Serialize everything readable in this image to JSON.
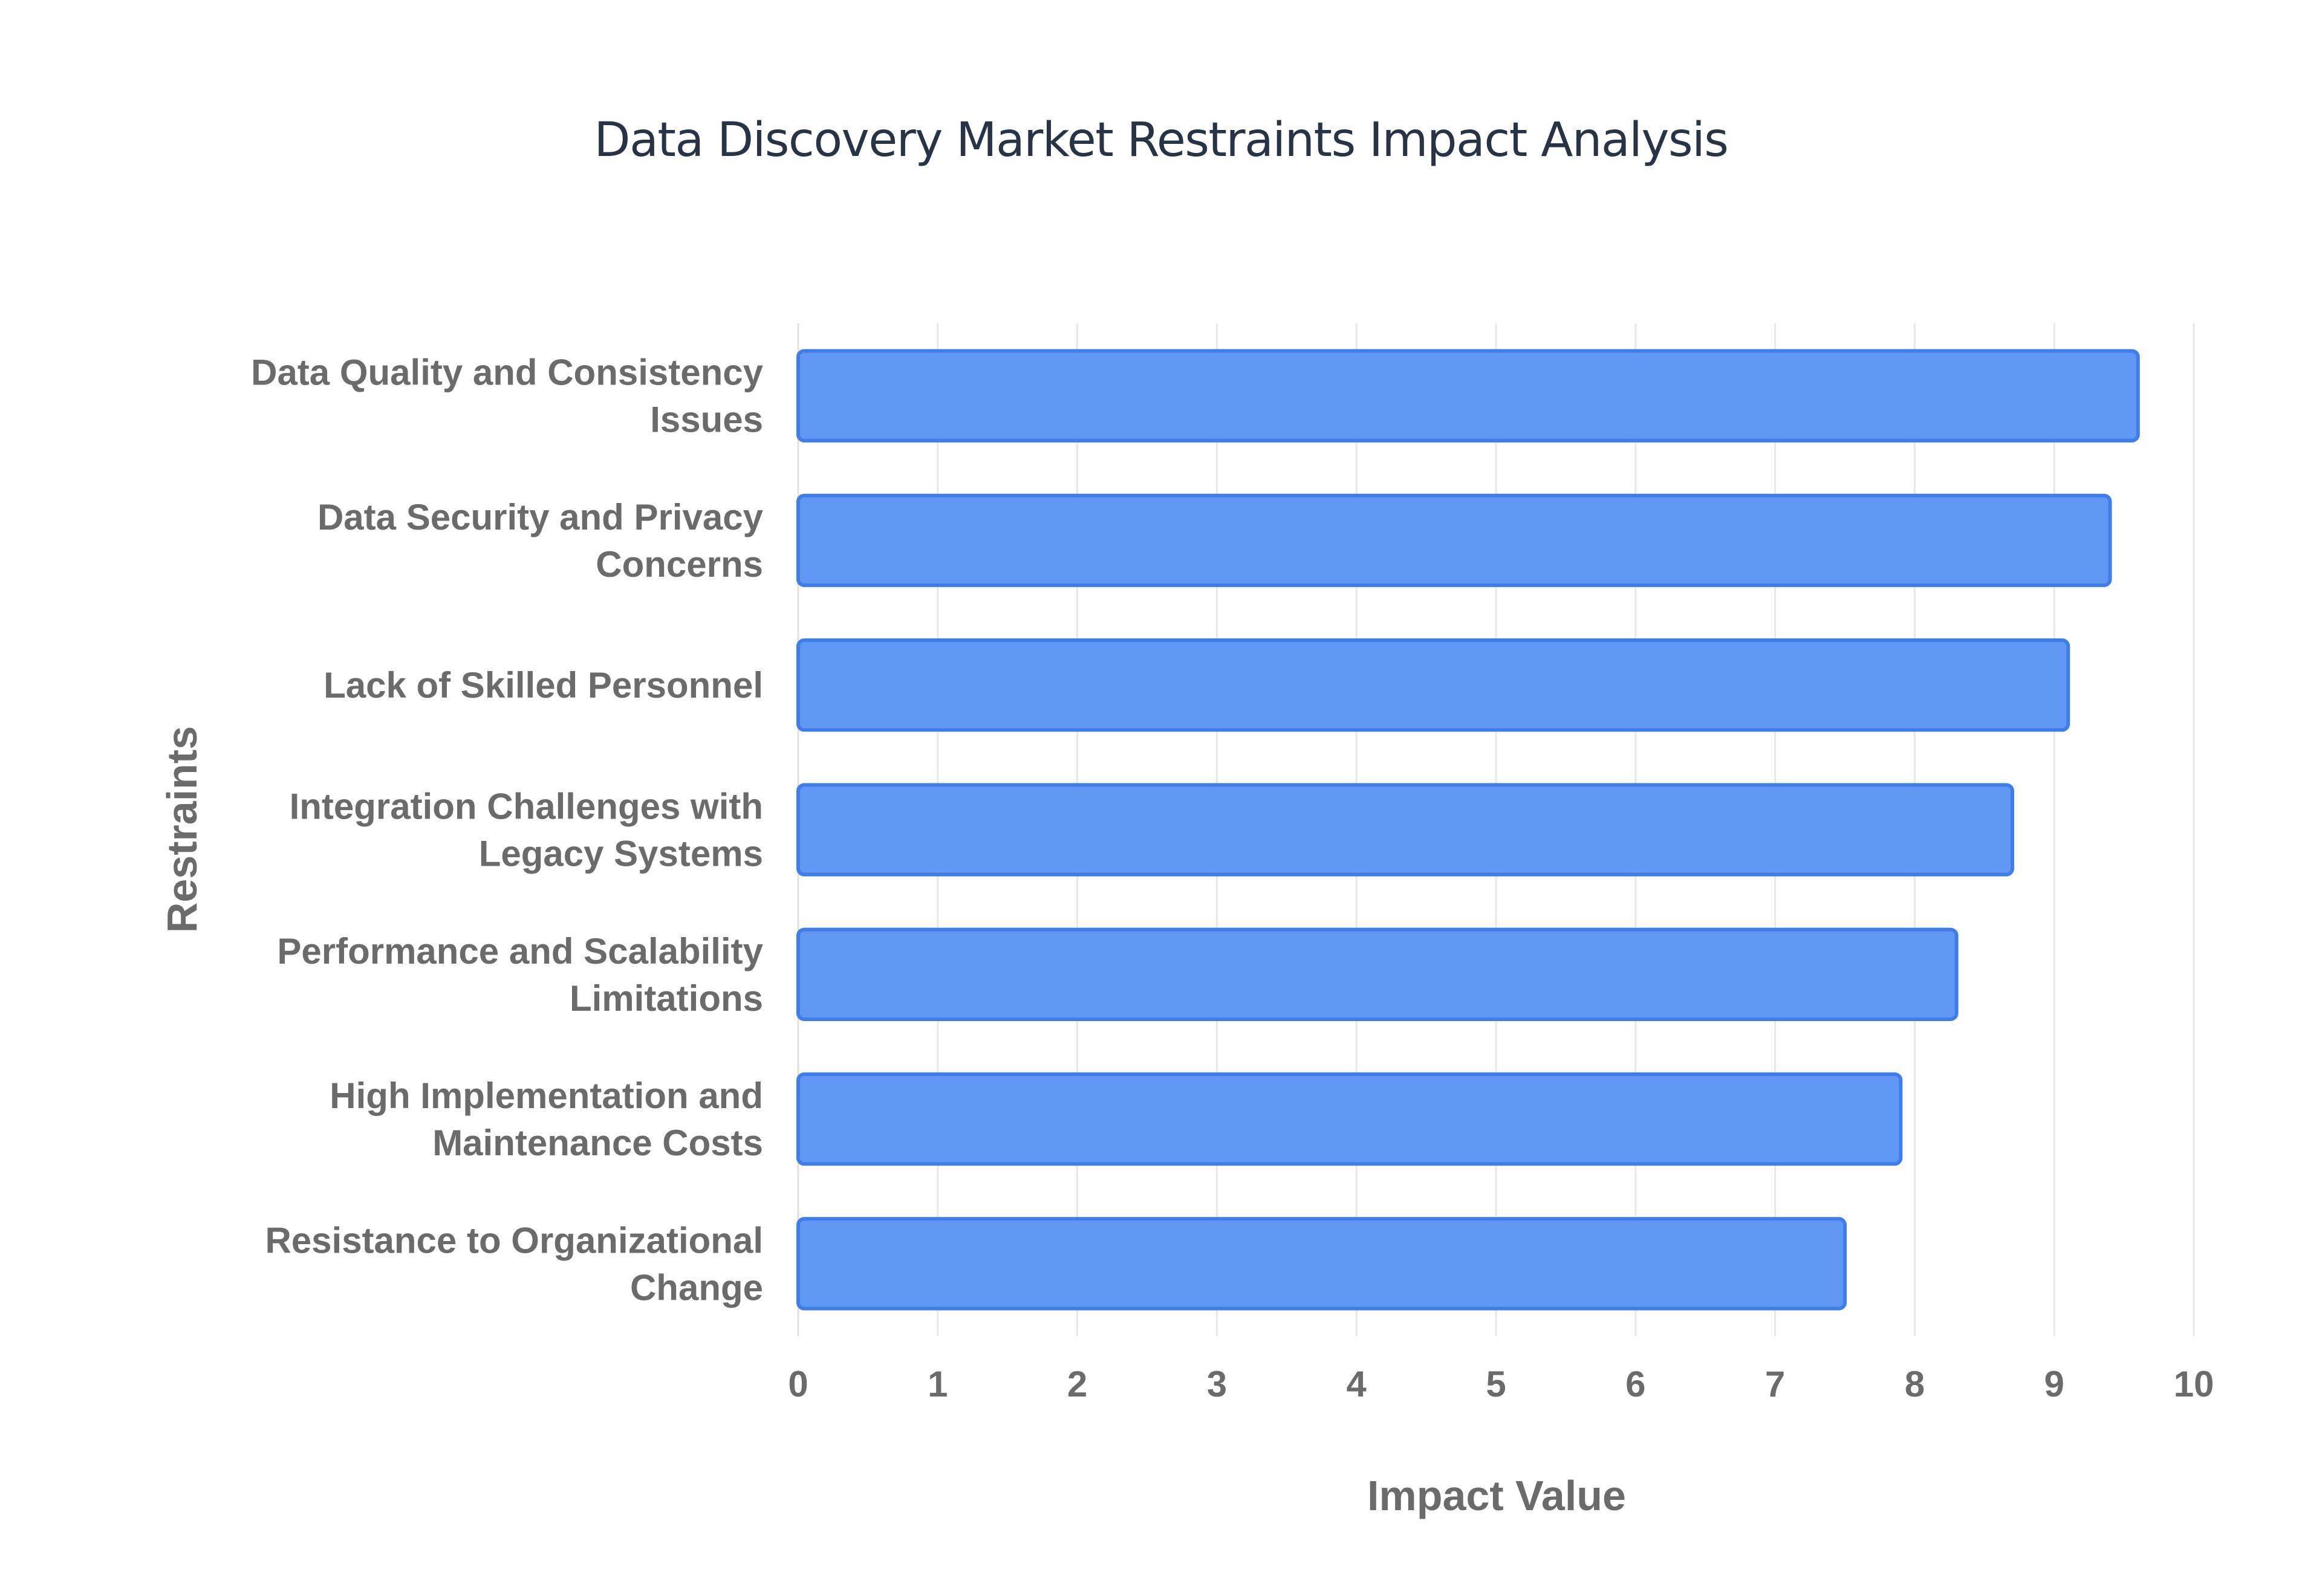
{
  "chart_data": {
    "type": "bar",
    "orientation": "horizontal",
    "title": "Data Discovery Market Restraints Impact Analysis",
    "xlabel": "Impact Value",
    "ylabel": "Restraints",
    "xlim": [
      0,
      10
    ],
    "x_ticks": [
      "0",
      "1",
      "2",
      "3",
      "4",
      "5",
      "6",
      "7",
      "8",
      "9",
      "10"
    ],
    "grid": true,
    "legend": "none",
    "colors": {
      "bar_fill": "#6198f4",
      "bar_border": "#3f7de8",
      "title": "#263445",
      "labels": "#6b6b6b",
      "grid": "#e8e8e8"
    },
    "categories": [
      [
        "Data Quality and Consistency",
        "Issues"
      ],
      [
        "Data Security and Privacy",
        "Concerns"
      ],
      [
        "Lack of Skilled Personnel"
      ],
      [
        "Integration Challenges with",
        "Legacy Systems"
      ],
      [
        "Performance and Scalability",
        "Limitations"
      ],
      [
        "High Implementation and",
        "Maintenance Costs"
      ],
      [
        "Resistance to Organizational",
        "Change"
      ]
    ],
    "values": [
      9.6,
      9.4,
      9.1,
      8.7,
      8.3,
      7.9,
      7.5
    ]
  }
}
